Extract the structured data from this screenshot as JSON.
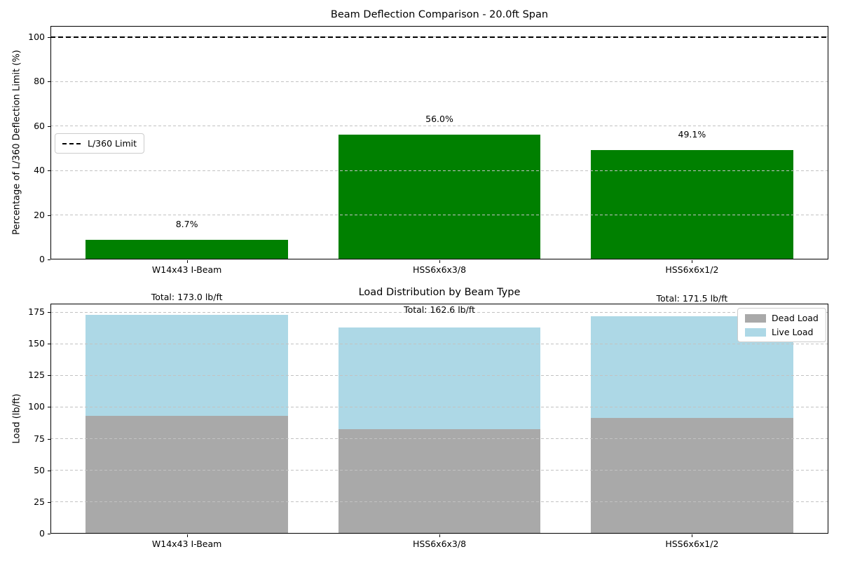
{
  "figure": {
    "background": "#ffffff"
  },
  "colors": {
    "bar_green": "#008000",
    "dead_load_gray": "#a9a9a9",
    "live_load_blue": "#add8e6",
    "grid": "#c2c2c2",
    "reference_line": "#000000"
  },
  "chart_data": [
    {
      "type": "bar",
      "title": "Beam Deflection Comparison - 20.0ft Span",
      "xlabel": "",
      "ylabel": "Percentage of L/360 Deflection Limit (%)",
      "categories": [
        "W14x43 I-Beam",
        "HSS6x6x3/8",
        "HSS6x6x1/2"
      ],
      "values": [
        8.7,
        56.0,
        49.1
      ],
      "bar_labels": [
        "8.7%",
        "56.0%",
        "49.1%"
      ],
      "bar_color": "#008000",
      "ylim": [
        0,
        105
      ],
      "yticks": [
        0,
        20,
        40,
        60,
        80,
        100
      ],
      "grid": true,
      "reference_line": {
        "value": 100,
        "label": "L/360 Limit",
        "color": "#000000",
        "style": "dashed"
      },
      "legend": {
        "position": "center-left",
        "entries": [
          {
            "label": "L/360 Limit",
            "swatch": "dashed-line",
            "color": "#000000"
          }
        ]
      }
    },
    {
      "type": "stacked-bar",
      "title": "Load Distribution by Beam Type",
      "xlabel": "",
      "ylabel": "Load (lb/ft)",
      "categories": [
        "W14x43 I-Beam",
        "HSS6x6x3/8",
        "HSS6x6x1/2"
      ],
      "series": [
        {
          "name": "Dead Load",
          "values": [
            93.0,
            82.6,
            91.5
          ],
          "color": "#a9a9a9"
        },
        {
          "name": "Live Load",
          "values": [
            80.0,
            80.0,
            80.0
          ],
          "color": "#add8e6"
        }
      ],
      "totals": [
        173.0,
        162.6,
        171.5
      ],
      "annotations": [
        "Total: 173.0 lb/ft",
        "Total: 162.6 lb/ft",
        "Total: 171.5 lb/ft"
      ],
      "ylim": [
        0,
        181.65
      ],
      "yticks": [
        0,
        25,
        50,
        75,
        100,
        125,
        150,
        175
      ],
      "grid": true,
      "legend": {
        "position": "upper-right",
        "entries": [
          {
            "label": "Dead Load",
            "swatch": "box",
            "color": "#a9a9a9"
          },
          {
            "label": "Live Load",
            "swatch": "box",
            "color": "#add8e6"
          }
        ]
      }
    }
  ]
}
